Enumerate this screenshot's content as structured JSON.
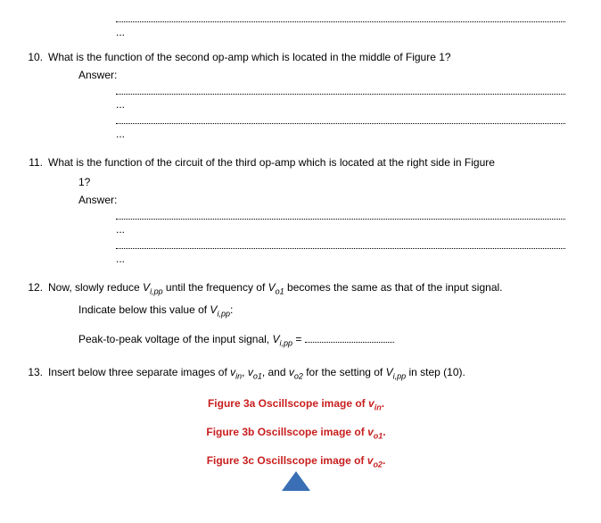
{
  "doc": {
    "text_color": "#000000",
    "accent_color": "#c81e1e",
    "arrow_color": "#3a6fb5",
    "font_family": "Arial",
    "font_size_pt": 12,
    "ellipsis": "..."
  },
  "q10": {
    "number": "10.",
    "text": "What is the function of the second op-amp which is located in the middle of Figure 1?",
    "answer_label": "Answer:"
  },
  "q11": {
    "number": "11.",
    "text_part1": "What is the function of the circuit of the third op-amp which is located at the right side in Figure",
    "text_part2": "1?",
    "answer_label": "Answer:"
  },
  "q12": {
    "number": "12.",
    "text_part1": "Now, slowly reduce ",
    "var1_base": "V",
    "var1_sub": "i,pp",
    "text_part2": " until the frequency of ",
    "var2_base": "V",
    "var2_sub": "o1",
    "text_part3": " becomes the same as that of the input signal.",
    "line2_part1": "Indicate below this value of ",
    "line2_var_base": "V",
    "line2_var_sub": "i,pp",
    "line2_part2": ":",
    "eq_label": "Peak-to-peak voltage of the input signal, ",
    "eq_var_base": "V",
    "eq_var_sub": "i,pp",
    "eq_eq": " = "
  },
  "q13": {
    "number": "13.",
    "text_part1": "Insert below three separate images of ",
    "v1_base": "v",
    "v1_sub": "in",
    "sep1": ", ",
    "v2_base": "v",
    "v2_sub": "o1",
    "sep2": ", and ",
    "v3_base": "v",
    "v3_sub": "o2",
    "text_part2": " for the setting of ",
    "v4_base": "V",
    "v4_sub": "i,pp",
    "text_part3": " in step (10)."
  },
  "figures": {
    "f3a_label": "Figure  3a Oscillscope image of ",
    "f3a_var_base": "v",
    "f3a_var_sub": "in",
    "f3a_end": ".",
    "f3b_label": "Figure 3b Oscillscope image of ",
    "f3b_var_base": "v",
    "f3b_var_sub": "o1",
    "f3b_end": ".",
    "f3c_label": "Figure 3c Oscillscope image of ",
    "f3c_var_base": "v",
    "f3c_var_sub": "o2",
    "f3c_end": "."
  }
}
